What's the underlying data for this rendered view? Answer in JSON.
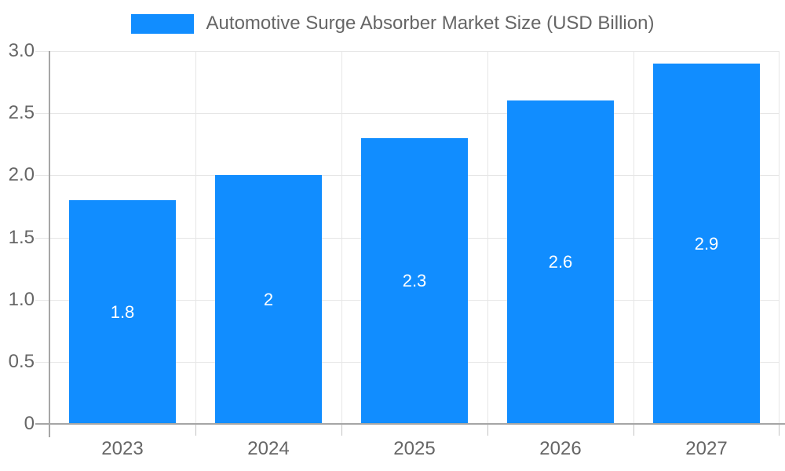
{
  "chart_data": {
    "type": "bar",
    "title": "Automotive Surge Absorber Market Size (USD Billion)",
    "xlabel": "",
    "ylabel": "",
    "categories": [
      "2023",
      "2024",
      "2025",
      "2026",
      "2027"
    ],
    "values": [
      1.8,
      2,
      2.3,
      2.6,
      2.9
    ],
    "value_labels": [
      "1.8",
      "2",
      "2.3",
      "2.6",
      "2.9"
    ],
    "ylim": [
      0,
      3
    ],
    "y_ticks": [
      0,
      0.5,
      1,
      1.5,
      2,
      2.5,
      3
    ],
    "y_tick_labels": [
      "0",
      "0.5",
      "1.0",
      "1.5",
      "2.0",
      "2.5",
      "3.0"
    ],
    "grid": true,
    "legend_position": "top",
    "colors": {
      "bar": "#118DFF",
      "value_label": "#FFFFFF",
      "axis_text": "#666666",
      "gridline": "#E6E6E6",
      "axis_line": "#A6A6A6",
      "background": "#FFFFFF"
    }
  }
}
